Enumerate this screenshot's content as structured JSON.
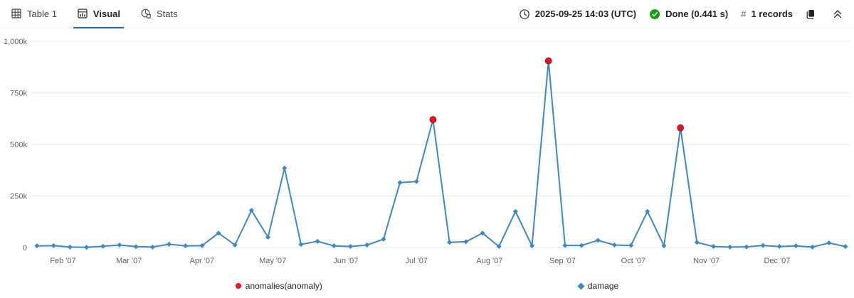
{
  "header": {
    "tabs": [
      {
        "label": "Table 1",
        "icon": "table-icon",
        "active": false
      },
      {
        "label": "Visual",
        "icon": "visual-icon",
        "active": true
      },
      {
        "label": "Stats",
        "icon": "stats-icon",
        "active": false
      }
    ],
    "timestamp": "2025-09-25 14:03 (UTC)",
    "status": "Done (0.441 s)",
    "records_hash": "#",
    "records": "1 records"
  },
  "legend": [
    {
      "label": "anomalies(anomaly)",
      "marker": "circle",
      "color": "#e81123"
    },
    {
      "label": "damage",
      "marker": "diamond",
      "color": "#3c87c8"
    }
  ],
  "chart_data": {
    "type": "line",
    "series": [
      {
        "name": "damage",
        "start_date": "2007-01-21",
        "step_days": 7,
        "values": [
          8000,
          9000,
          2000,
          1000,
          6000,
          12000,
          4000,
          2000,
          16000,
          8000,
          9000,
          70000,
          12000,
          180000,
          50000,
          385000,
          15000,
          30000,
          8000,
          5000,
          12000,
          40000,
          315000,
          320000,
          620000,
          25000,
          28000,
          70000,
          5000,
          175000,
          8000,
          905000,
          10000,
          10000,
          35000,
          12000,
          10000,
          175000,
          8000,
          580000,
          25000,
          5000,
          2000,
          3000,
          10000,
          5000,
          8000,
          2000,
          22000,
          5000
        ]
      }
    ],
    "anomalies": {
      "name": "anomalies(anomaly)",
      "indices": [
        24,
        31,
        39
      ]
    },
    "y_axis": {
      "max": 1000000,
      "ticks": [
        {
          "label": "0",
          "value": 0
        },
        {
          "label": "250k",
          "value": 250000
        },
        {
          "label": "500k",
          "value": 500000
        },
        {
          "label": "750k",
          "value": 750000
        },
        {
          "label": "1,000k",
          "value": 1000000
        }
      ]
    },
    "x_axis": {
      "ticks": [
        {
          "label": "Feb '07",
          "date": "2007-02-01"
        },
        {
          "label": "Mar '07",
          "date": "2007-03-01"
        },
        {
          "label": "Apr '07",
          "date": "2007-04-01"
        },
        {
          "label": "May '07",
          "date": "2007-05-01"
        },
        {
          "label": "Jun '07",
          "date": "2007-06-01"
        },
        {
          "label": "Jul '07",
          "date": "2007-07-01"
        },
        {
          "label": "Aug '07",
          "date": "2007-08-01"
        },
        {
          "label": "Sep '07",
          "date": "2007-09-01"
        },
        {
          "label": "Oct '07",
          "date": "2007-10-01"
        },
        {
          "label": "Nov '07",
          "date": "2007-11-01"
        },
        {
          "label": "Dec '07",
          "date": "2007-12-01"
        }
      ]
    },
    "colors": {
      "line": "#3c87c8",
      "anomaly": "#e81123",
      "grid": "#e8e8e8",
      "axis_text": "#616161",
      "accent": "#0f6cbd",
      "success": "#13a10e"
    }
  }
}
